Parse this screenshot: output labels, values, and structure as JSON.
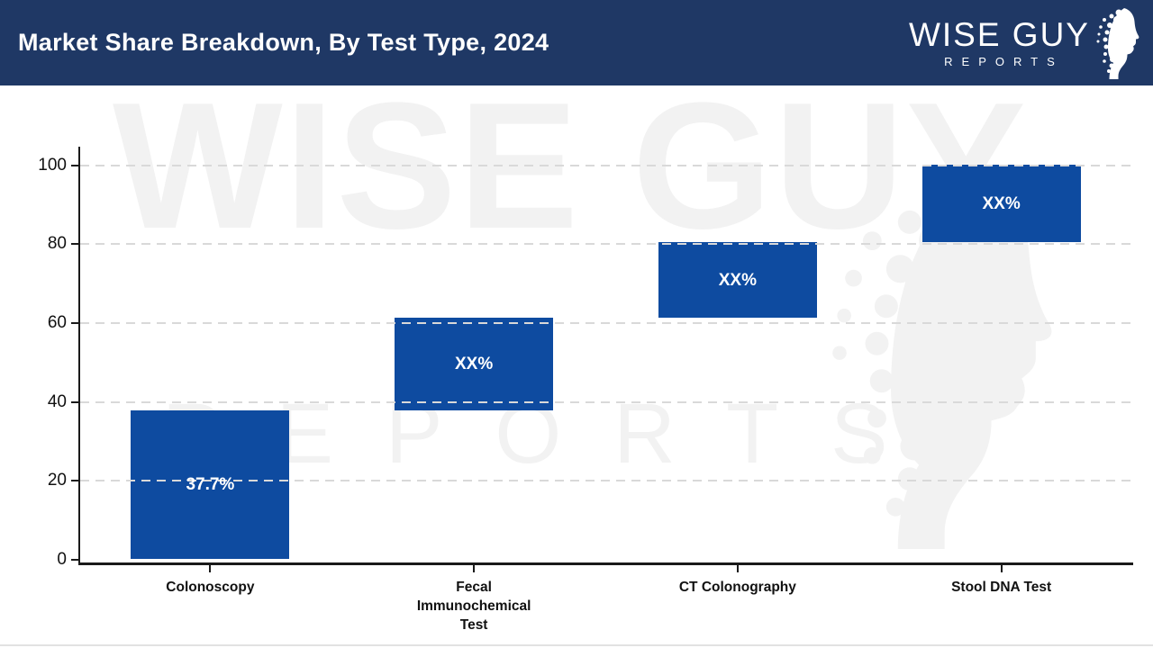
{
  "header": {
    "title": "Market Share Breakdown, By Test Type, 2024",
    "logo": {
      "line1": "WISE GUY",
      "line2": "REPORTS"
    }
  },
  "watermark": {
    "line1": "WISE GUY",
    "line2": "REPORTS"
  },
  "chart_data": {
    "type": "bar",
    "subtype": "waterfall",
    "title": "Market Share Breakdown, By Test Type, 2024",
    "categories": [
      "Colonoscopy",
      "Fecal Immunochemical Test",
      "CT Colonography",
      "Stool DNA Test"
    ],
    "categories_display": [
      "Colonoscopy",
      "Fecal\nImmunochemical\nTest",
      "CT Colonography",
      "Stool DNA Test"
    ],
    "segments": [
      {
        "category": "Colonoscopy",
        "start": 0,
        "end": 37.7,
        "label": "37.7%"
      },
      {
        "category": "Fecal Immunochemical Test",
        "start": 37.7,
        "end": 61.2,
        "label": "XX%"
      },
      {
        "category": "CT Colonography",
        "start": 61.2,
        "end": 80.3,
        "label": "XX%"
      },
      {
        "category": "Stool DNA Test",
        "start": 80.3,
        "end": 100,
        "label": "XX%"
      }
    ],
    "xlabel": "",
    "ylabel": "",
    "ylim": [
      0,
      100
    ],
    "yticks": [
      0,
      20,
      40,
      60,
      80,
      100
    ],
    "grid": "dashed-horizontal",
    "legend": "none",
    "bar_color": "#0E4BA0",
    "bar_label_color": "#ffffff"
  },
  "colors": {
    "header_bg": "#1F3865",
    "bar": "#0E4BA0",
    "watermark": "#F2F2F2",
    "gridline": "#D9D9D9",
    "axis": "#1A1A1A"
  }
}
